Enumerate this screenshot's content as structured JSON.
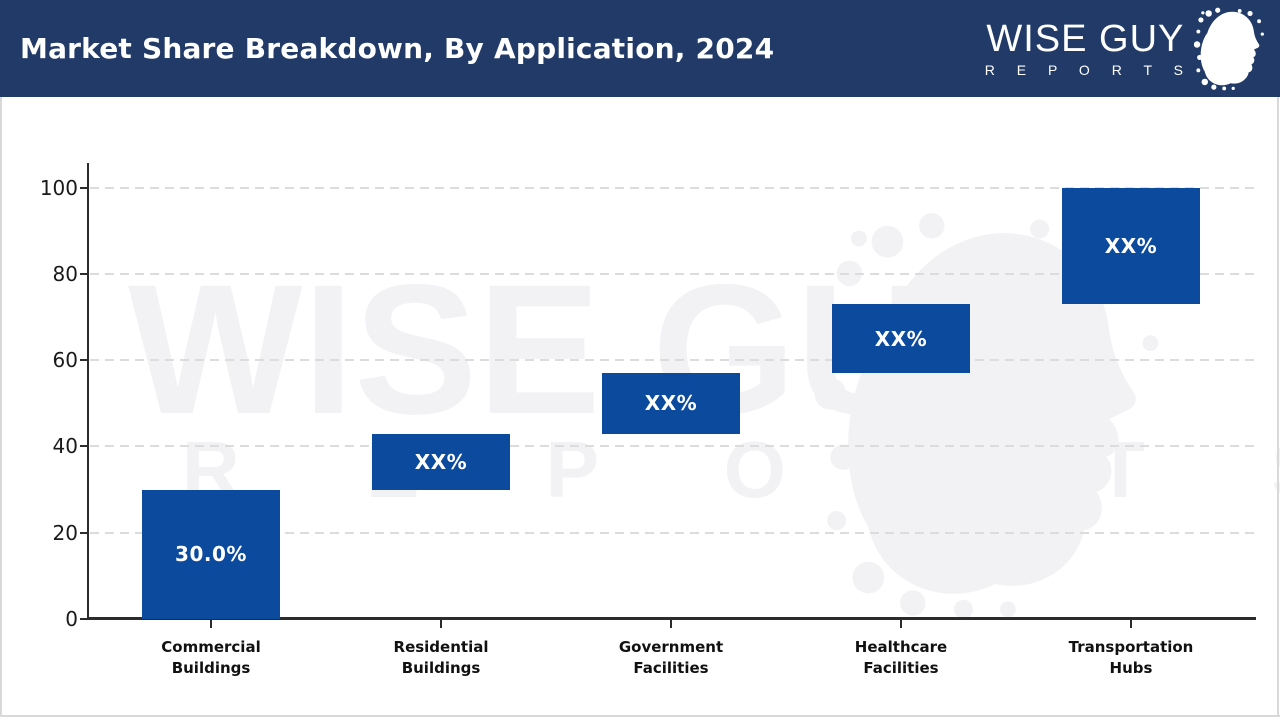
{
  "header": {
    "title": "Market Share Breakdown, By Application, 2024",
    "logo": {
      "line1": "WISE GUY",
      "line2": "R E P O R T S"
    }
  },
  "watermark": {
    "line1": "WISE GUY",
    "line2": "R E P O R T S"
  },
  "colors": {
    "header_bg": "#213A68",
    "bar": "#0C4A9E",
    "grid": "#DCDCDC",
    "axis": "#2B2B2B",
    "watermark": "#F2F2F4",
    "panel_border": "#D9D9D9",
    "bar_label": "#FFFFFF"
  },
  "chart_data": {
    "type": "bar",
    "subtype": "waterfall",
    "title": "Market Share Breakdown, By Application, 2024",
    "xlabel": "",
    "ylabel": "",
    "categories": [
      [
        "Commercial",
        "Buildings"
      ],
      [
        "Residential",
        "Buildings"
      ],
      [
        "Government",
        "Facilities"
      ],
      [
        "Healthcare",
        "Facilities"
      ],
      [
        "Transportation",
        "Hubs"
      ]
    ],
    "segments": [
      {
        "start": 0,
        "end": 30,
        "label": "30.0%"
      },
      {
        "start": 30,
        "end": 43,
        "label": "XX%"
      },
      {
        "start": 43,
        "end": 57,
        "label": "XX%"
      },
      {
        "start": 57,
        "end": 73,
        "label": "XX%"
      },
      {
        "start": 73,
        "end": 100,
        "label": "XX%"
      }
    ],
    "values": [
      30,
      13,
      14,
      16,
      27
    ],
    "y_ticks": [
      0,
      20,
      40,
      60,
      80,
      100
    ],
    "ylim": [
      0,
      106
    ],
    "grid": "dashed-horizontal",
    "legend": "none"
  }
}
